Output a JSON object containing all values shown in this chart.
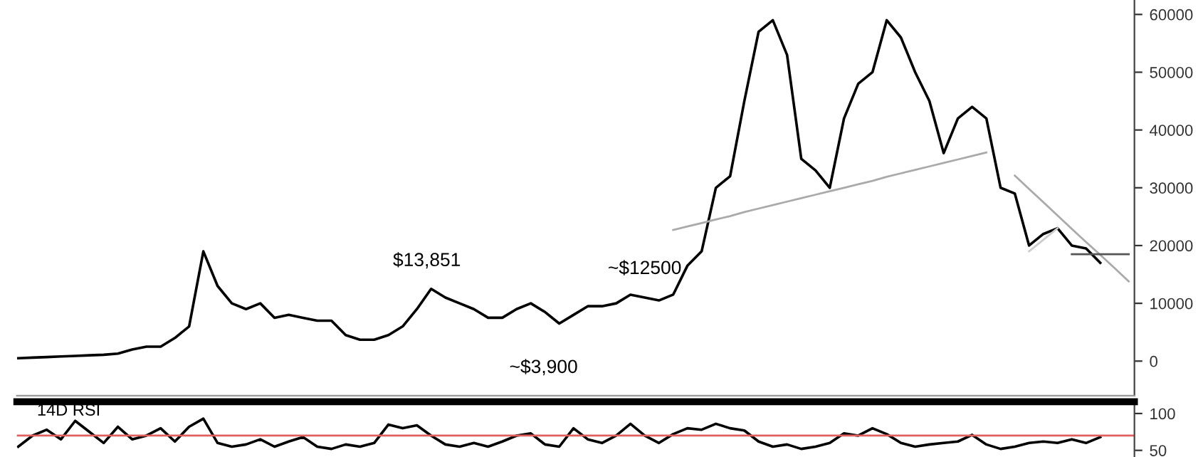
{
  "chart_data": [
    {
      "type": "line",
      "categories": [
        null,
        null,
        null,
        null,
        null,
        null,
        null,
        null,
        null,
        null,
        null,
        null,
        null,
        null,
        null,
        null,
        null,
        null,
        null,
        null,
        null,
        null,
        null,
        null,
        null,
        null,
        null,
        null,
        null,
        null,
        null,
        null,
        null,
        null,
        null,
        null,
        null,
        null,
        null,
        null,
        null,
        null,
        null,
        null,
        null,
        null,
        null,
        null,
        null,
        null,
        null,
        null,
        null,
        null,
        null,
        null,
        null,
        null,
        null,
        null,
        null,
        null,
        null,
        null,
        null,
        null,
        null,
        null,
        null,
        null,
        null,
        null,
        null,
        null,
        null,
        null,
        null,
        null,
        null
      ],
      "series": [
        {
          "color": "#000000",
          "values": [
            500,
            600,
            700,
            800,
            900,
            1000,
            1100,
            1300,
            2000,
            2500,
            2500,
            4000,
            6000,
            19000,
            13000,
            10000,
            9000,
            10000,
            7500,
            8000,
            7500,
            7000,
            7000,
            4500,
            3700,
            3700,
            4500,
            6000,
            9000,
            12500,
            11000,
            10000,
            9000,
            7500,
            7500,
            9000,
            10000,
            8500,
            6500,
            8000,
            9500,
            9500,
            10000,
            11500,
            11000,
            10500,
            11500,
            16500,
            19000,
            30000,
            32000,
            45000,
            57000,
            59000,
            53000,
            35000,
            33000,
            30000,
            42000,
            48000,
            50000,
            59000,
            56000,
            50000,
            45000,
            36000,
            42000,
            44000,
            42000,
            30000,
            29000,
            20000,
            22000,
            23000,
            20000,
            19500,
            17000,
            null,
            null
          ]
        },
        {
          "color": "#aaaaaa",
          "values": [
            null,
            null,
            null,
            null,
            null,
            null,
            null,
            null,
            null,
            null,
            null,
            null,
            null,
            null,
            null,
            null,
            null,
            null,
            null,
            null,
            null,
            null,
            null,
            null,
            null,
            null,
            null,
            null,
            null,
            null,
            null,
            null,
            null,
            null,
            null,
            null,
            null,
            null,
            null,
            null,
            null,
            null,
            null,
            null,
            null,
            null,
            22700,
            23300,
            23900,
            24500,
            25100,
            25800,
            26400,
            27000,
            27600,
            28200,
            28800,
            29400,
            30000,
            30600,
            31200,
            31900,
            32500,
            33100,
            33700,
            34300,
            34900,
            35500,
            36100,
            null,
            null,
            null,
            null,
            null,
            null,
            null,
            null,
            null,
            null
          ]
        },
        {
          "color": "#aaaaaa",
          "values": [
            null,
            null,
            null,
            null,
            null,
            null,
            null,
            null,
            null,
            null,
            null,
            null,
            null,
            null,
            null,
            null,
            null,
            null,
            null,
            null,
            null,
            null,
            null,
            null,
            null,
            null,
            null,
            null,
            null,
            null,
            null,
            null,
            null,
            null,
            null,
            null,
            null,
            null,
            null,
            null,
            null,
            null,
            null,
            null,
            null,
            null,
            null,
            null,
            null,
            null,
            null,
            null,
            null,
            null,
            null,
            null,
            null,
            null,
            null,
            null,
            null,
            null,
            null,
            null,
            null,
            null,
            null,
            null,
            null,
            null,
            32100,
            29800,
            27500,
            25200,
            22900,
            20600,
            18400,
            16100,
            13800
          ]
        },
        {
          "color": "#cccccc",
          "values": [
            null,
            null,
            null,
            null,
            null,
            null,
            null,
            null,
            null,
            null,
            null,
            null,
            null,
            null,
            null,
            null,
            null,
            null,
            null,
            null,
            null,
            null,
            null,
            null,
            null,
            null,
            null,
            null,
            null,
            null,
            null,
            null,
            null,
            null,
            null,
            null,
            null,
            null,
            null,
            null,
            null,
            null,
            null,
            null,
            null,
            null,
            null,
            null,
            null,
            null,
            null,
            null,
            null,
            null,
            null,
            null,
            null,
            null,
            null,
            null,
            null,
            null,
            null,
            null,
            null,
            null,
            null,
            null,
            null,
            null,
            null,
            19000,
            21000,
            23000,
            null,
            null,
            null,
            null,
            null
          ]
        },
        {
          "color": "#555555",
          "values": [
            null,
            null,
            null,
            null,
            null,
            null,
            null,
            null,
            null,
            null,
            null,
            null,
            null,
            null,
            null,
            null,
            null,
            null,
            null,
            null,
            null,
            null,
            null,
            null,
            null,
            null,
            null,
            null,
            null,
            null,
            null,
            null,
            null,
            null,
            null,
            null,
            null,
            null,
            null,
            null,
            null,
            null,
            null,
            null,
            null,
            null,
            null,
            null,
            null,
            null,
            null,
            null,
            null,
            null,
            null,
            null,
            null,
            null,
            null,
            null,
            null,
            null,
            null,
            null,
            null,
            null,
            null,
            null,
            null,
            null,
            null,
            null,
            null,
            null,
            18500,
            18500,
            18500,
            18500,
            18500
          ]
        }
      ],
      "annotations": [
        "$13,851",
        "~$3,900",
        "~$12500"
      ],
      "ylim": [
        -6000,
        62500
      ],
      "yticks": [
        0,
        10000,
        20000,
        30000,
        40000,
        50000,
        60000
      ],
      "tick_labels": "y"
    },
    {
      "type": "line",
      "title": "14D RSI",
      "categories": [
        null,
        null,
        null,
        null,
        null,
        null,
        null,
        null,
        null,
        null,
        null,
        null,
        null,
        null,
        null,
        null,
        null,
        null,
        null,
        null,
        null,
        null,
        null,
        null,
        null,
        null,
        null,
        null,
        null,
        null,
        null,
        null,
        null,
        null,
        null,
        null,
        null,
        null,
        null,
        null,
        null,
        null,
        null,
        null,
        null,
        null,
        null,
        null,
        null,
        null,
        null,
        null,
        null,
        null,
        null,
        null,
        null,
        null,
        null,
        null,
        null,
        null,
        null,
        null,
        null,
        null,
        null,
        null,
        null,
        null,
        null,
        null,
        null,
        null,
        null,
        null,
        null,
        null,
        null
      ],
      "series": [
        {
          "color": "#000000",
          "values": [
            55,
            70,
            78,
            65,
            90,
            75,
            60,
            82,
            65,
            70,
            80,
            62,
            82,
            93,
            60,
            55,
            58,
            65,
            55,
            62,
            68,
            55,
            52,
            58,
            55,
            60,
            85,
            80,
            84,
            70,
            58,
            55,
            60,
            55,
            62,
            70,
            73,
            58,
            55,
            80,
            65,
            60,
            70,
            86,
            70,
            60,
            72,
            80,
            78,
            86,
            80,
            77,
            62,
            55,
            58,
            52,
            55,
            60,
            73,
            70,
            80,
            72,
            60,
            55,
            58,
            60,
            62,
            71,
            58,
            52,
            55,
            60,
            62,
            60,
            65,
            60,
            68,
            null,
            null
          ]
        }
      ],
      "ref_lines": [
        {
          "axis": "y",
          "value": 70,
          "color": "#e06060"
        }
      ],
      "ylim": [
        41,
        116
      ],
      "yticks": [
        50,
        100
      ],
      "tick_labels": "y"
    }
  ]
}
